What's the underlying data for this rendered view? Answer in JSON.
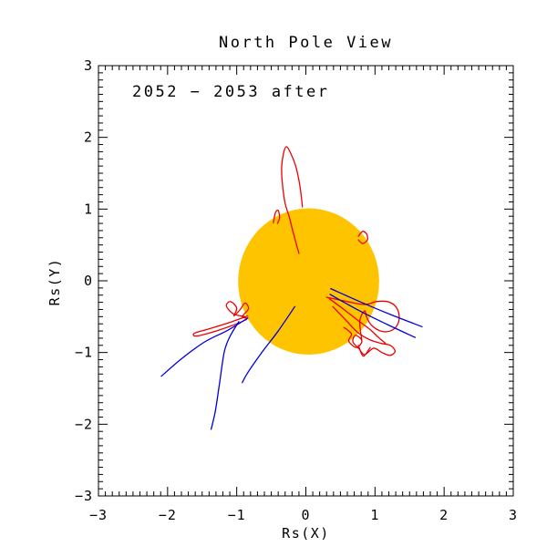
{
  "window": {
    "background": "#ffffff"
  },
  "colors": {
    "sun": "#FFC400",
    "closed_field_line": "#EE0000",
    "open_field_line": "#0000DD",
    "axis": "#000000",
    "text": "#000000"
  },
  "chart_data": {
    "type": "line",
    "title": "North Pole View",
    "annotation": "2052 − 2053 after",
    "xlabel": "Rs(X)",
    "ylabel": "Rs(Y)",
    "xlim": [
      -3,
      3
    ],
    "ylim": [
      -3,
      3
    ],
    "xticks": [
      -3,
      -2,
      -1,
      0,
      1,
      2,
      3
    ],
    "yticks": [
      -3,
      -2,
      -1,
      0,
      1,
      2,
      3
    ],
    "xtick_labels": [
      "−3",
      "−2",
      "−1",
      "0",
      "1",
      "2",
      "3"
    ],
    "ytick_labels": [
      "−3",
      "−2",
      "−1",
      "0",
      "1",
      "2",
      "3"
    ],
    "minor_tick_interval": 0.1,
    "grid": false,
    "legend": null,
    "sun": {
      "center": [
        0.04,
        -0.01
      ],
      "radius": 1.02,
      "color": "#FFC400"
    },
    "series": [
      {
        "name": "red-north-polar-loop",
        "color": "#EE0000",
        "points": [
          [
            -0.1,
            0.38
          ],
          [
            -0.18,
            0.66
          ],
          [
            -0.24,
            0.89
          ],
          [
            -0.3,
            1.08
          ],
          [
            -0.34,
            1.36
          ],
          [
            -0.35,
            1.59
          ],
          [
            -0.32,
            1.79
          ],
          [
            -0.28,
            1.87
          ],
          [
            -0.22,
            1.78
          ],
          [
            -0.15,
            1.61
          ],
          [
            -0.1,
            1.4
          ],
          [
            -0.07,
            1.21
          ],
          [
            -0.05,
            1.03
          ]
        ]
      },
      {
        "name": "red-northwest-limb-hook",
        "color": "#EE0000",
        "points": [
          [
            -0.47,
            0.81
          ],
          [
            -0.44,
            0.95
          ],
          [
            -0.4,
            0.98
          ],
          [
            -0.38,
            0.88
          ],
          [
            -0.41,
            0.8
          ]
        ]
      },
      {
        "name": "red-east-limb-loop",
        "color": "#EE0000",
        "points": [
          [
            0.76,
            0.62
          ],
          [
            0.82,
            0.69
          ],
          [
            0.88,
            0.65
          ],
          [
            0.89,
            0.57
          ],
          [
            0.82,
            0.52
          ],
          [
            0.76,
            0.57
          ]
        ]
      },
      {
        "name": "red-southeast-circle-loop",
        "color": "#EE0000",
        "points": [
          [
            0.3,
            -0.23
          ],
          [
            0.6,
            -0.29
          ],
          [
            0.85,
            -0.33
          ],
          [
            1.02,
            -0.29
          ],
          [
            1.18,
            -0.29
          ],
          [
            1.3,
            -0.36
          ],
          [
            1.35,
            -0.49
          ],
          [
            1.32,
            -0.62
          ],
          [
            1.22,
            -0.7
          ],
          [
            1.08,
            -0.7
          ],
          [
            0.95,
            -0.62
          ],
          [
            0.88,
            -0.51
          ],
          [
            0.85,
            -0.42
          ],
          [
            0.78,
            -0.56
          ],
          [
            0.81,
            -0.84
          ]
        ]
      },
      {
        "name": "red-southeast-tangle",
        "color": "#EE0000",
        "points": [
          [
            0.39,
            -0.36
          ],
          [
            0.58,
            -0.55
          ],
          [
            0.75,
            -0.72
          ],
          [
            0.92,
            -0.82
          ],
          [
            1.08,
            -0.87
          ],
          [
            1.22,
            -0.9
          ],
          [
            1.29,
            -0.98
          ],
          [
            1.22,
            -1.04
          ],
          [
            1.1,
            -1.0
          ],
          [
            0.98,
            -0.94
          ],
          [
            0.85,
            -1.03
          ],
          [
            0.77,
            -0.95
          ],
          [
            0.68,
            -0.85
          ],
          [
            0.72,
            -0.76
          ],
          [
            0.81,
            -0.84
          ],
          [
            0.73,
            -0.93
          ],
          [
            0.62,
            -0.84
          ],
          [
            0.66,
            -0.74
          ],
          [
            0.55,
            -0.65
          ]
        ]
      },
      {
        "name": "red-southeast-streamer",
        "color": "#EE0000",
        "points": [
          [
            0.34,
            -0.25
          ],
          [
            0.55,
            -0.4
          ],
          [
            0.75,
            -0.55
          ],
          [
            0.93,
            -0.68
          ],
          [
            1.05,
            -0.79
          ],
          [
            1.15,
            -0.87
          ]
        ]
      },
      {
        "name": "red-southeast-v-kink",
        "color": "#EE0000",
        "points": [
          [
            0.76,
            -0.9
          ],
          [
            0.83,
            -1.05
          ],
          [
            0.93,
            -0.93
          ]
        ]
      },
      {
        "name": "red-southwest-narrow-loop",
        "color": "#EE0000",
        "points": [
          [
            -0.84,
            -0.49
          ],
          [
            -1.1,
            -0.58
          ],
          [
            -1.4,
            -0.67
          ],
          [
            -1.61,
            -0.73
          ],
          [
            -1.58,
            -0.77
          ],
          [
            -1.3,
            -0.7
          ],
          [
            -1.0,
            -0.6
          ],
          [
            -0.86,
            -0.54
          ]
        ]
      },
      {
        "name": "red-southwest-limb-petals",
        "color": "#EE0000",
        "points": [
          [
            -0.88,
            -0.5
          ],
          [
            -1.05,
            -0.46
          ],
          [
            -1.15,
            -0.35
          ],
          [
            -1.09,
            -0.29
          ],
          [
            -1.0,
            -0.38
          ],
          [
            -1.04,
            -0.49
          ],
          [
            -0.95,
            -0.4
          ],
          [
            -0.88,
            -0.31
          ],
          [
            -0.83,
            -0.39
          ],
          [
            -0.92,
            -0.5
          ],
          [
            -0.84,
            -0.52
          ]
        ]
      },
      {
        "name": "blue-southwest-open-1",
        "color": "#0000DD",
        "points": [
          [
            -0.16,
            -0.36
          ],
          [
            -0.4,
            -0.7
          ],
          [
            -0.63,
            -0.99
          ],
          [
            -0.84,
            -1.28
          ],
          [
            -0.92,
            -1.42
          ]
        ]
      },
      {
        "name": "blue-southwest-open-2",
        "color": "#0000DD",
        "points": [
          [
            -0.84,
            -0.52
          ],
          [
            -1.13,
            -0.69
          ],
          [
            -1.46,
            -0.85
          ],
          [
            -1.79,
            -1.08
          ],
          [
            -2.09,
            -1.33
          ]
        ]
      },
      {
        "name": "blue-southwest-open-3",
        "color": "#0000DD",
        "points": [
          [
            -0.97,
            -0.57
          ],
          [
            -1.1,
            -0.78
          ],
          [
            -1.18,
            -0.99
          ],
          [
            -1.25,
            -1.44
          ],
          [
            -1.31,
            -1.82
          ],
          [
            -1.37,
            -2.07
          ]
        ]
      },
      {
        "name": "blue-southeast-open-1",
        "color": "#0000DD",
        "points": [
          [
            0.36,
            -0.11
          ],
          [
            0.85,
            -0.32
          ],
          [
            1.25,
            -0.48
          ],
          [
            1.68,
            -0.64
          ]
        ]
      },
      {
        "name": "blue-southeast-open-2",
        "color": "#0000DD",
        "points": [
          [
            0.35,
            -0.19
          ],
          [
            0.78,
            -0.42
          ],
          [
            1.18,
            -0.61
          ],
          [
            1.58,
            -0.79
          ]
        ]
      }
    ]
  }
}
